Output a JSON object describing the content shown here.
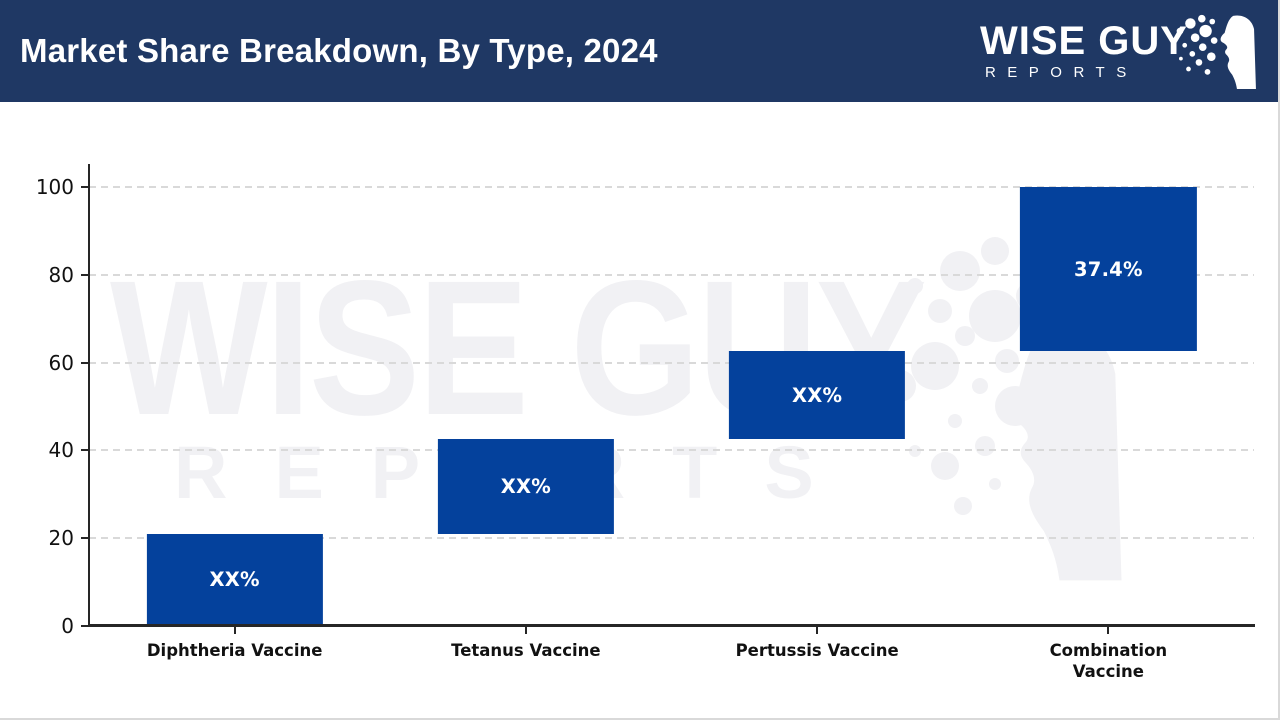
{
  "header": {
    "title": "Market Share Breakdown, By Type, 2024",
    "logo": {
      "line1": "WISE GUY",
      "line2": "REPORTS"
    }
  },
  "watermark": {
    "line1": "WISE GUY",
    "line2": "REPORTS"
  },
  "colors": {
    "header_bg": "#1F3864",
    "bar": "#04419C",
    "bar_label": "#FFFFFF",
    "grid": "#D9D9D9",
    "axis": "#262626",
    "watermark": "#F1F1F4"
  },
  "chart_data": {
    "type": "bar",
    "subtype": "floating-waterfall",
    "title": "Market Share Breakdown, By Type, 2024",
    "categories": [
      "Diphtheria Vaccine",
      "Tetanus Vaccine",
      "Pertussis Vaccine",
      "Combination\nVaccine"
    ],
    "segments": [
      {
        "category": "Diphtheria Vaccine",
        "start": 0,
        "end": 21.0,
        "label": "XX%"
      },
      {
        "category": "Tetanus Vaccine",
        "start": 21.0,
        "end": 42.6,
        "label": "XX%"
      },
      {
        "category": "Pertussis Vaccine",
        "start": 42.6,
        "end": 62.6,
        "label": "XX%"
      },
      {
        "category": "Combination Vaccine",
        "start": 62.6,
        "end": 100.0,
        "label": "37.4%"
      }
    ],
    "yticks": [
      0,
      20,
      40,
      60,
      80,
      100
    ],
    "ylim": [
      0,
      100
    ],
    "xlabel": "",
    "ylabel": "",
    "grid": true,
    "grid_style": "dashed-horizontal",
    "legend": "none"
  }
}
